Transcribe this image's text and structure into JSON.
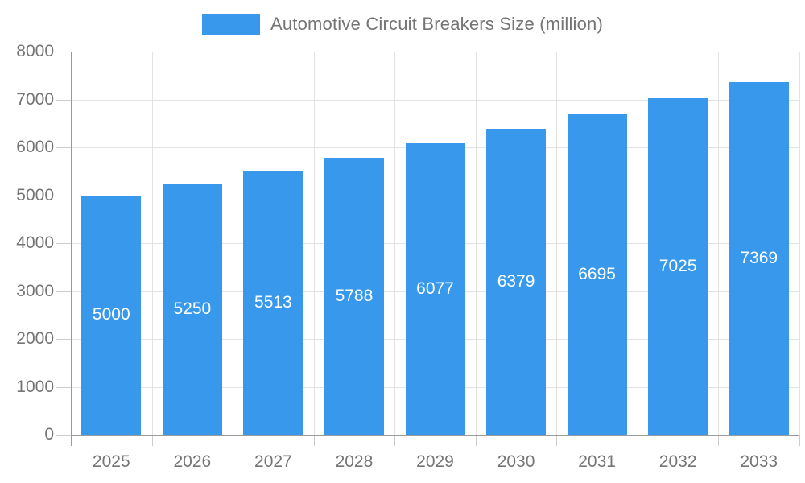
{
  "legend": {
    "label": "Automotive Circuit Breakers Size (million)"
  },
  "chart_data": {
    "type": "bar",
    "title": "Automotive Circuit Breakers Size (million)",
    "categories": [
      "2025",
      "2026",
      "2027",
      "2028",
      "2029",
      "2030",
      "2031",
      "2032",
      "2033"
    ],
    "values": [
      5000,
      5250,
      5513,
      5788,
      6077,
      6379,
      6695,
      7025,
      7369
    ],
    "value_labels": [
      "5000",
      "5250",
      "5513",
      "5788",
      "6077",
      "6379",
      "6695",
      "7025",
      "7369"
    ],
    "xlabel": "",
    "ylabel": "",
    "ylim": [
      0,
      8000
    ],
    "yticks": [
      0,
      1000,
      2000,
      3000,
      4000,
      5000,
      6000,
      7000,
      8000
    ],
    "grid": "on",
    "legend_position": "top-center",
    "value_label_position": "center-of-bar"
  },
  "colors": {
    "bar": "#3899EC",
    "grid": "#e2e2e2",
    "axis": "#9a9a9a",
    "tick": "#cccccc",
    "text": "#757575",
    "value_label": "#ffffff",
    "background": "#ffffff"
  }
}
